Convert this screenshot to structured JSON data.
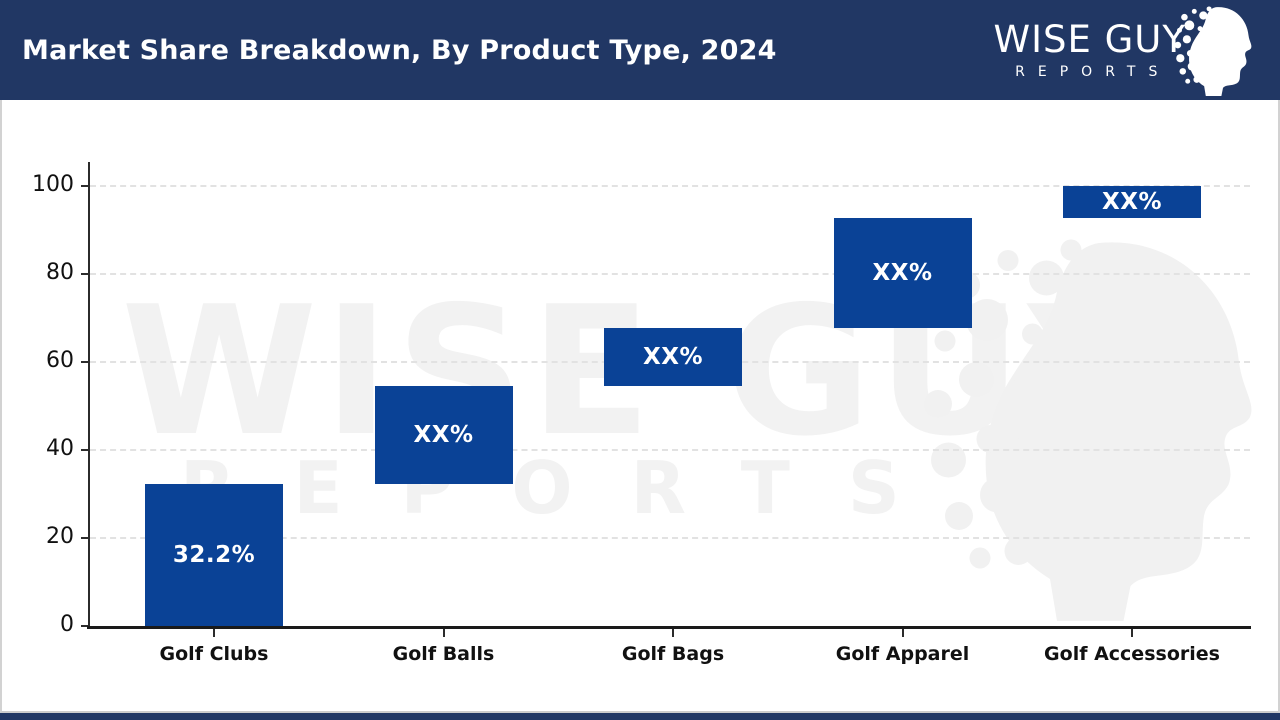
{
  "header": {
    "title": "Market Share Breakdown, By Product Type, 2024",
    "bg_color": "#213764",
    "logo": {
      "line1": "WISE GUY",
      "line2": "REPORTS"
    }
  },
  "watermark": {
    "line1": "WISE GUY",
    "line2": "REPORTS"
  },
  "footer": {
    "bg_color": "#213764"
  },
  "chart_data": {
    "type": "bar",
    "subtype": "waterfall",
    "title": "Market Share Breakdown, By Product Type, 2024",
    "categories": [
      "Golf Clubs",
      "Golf Balls",
      "Golf Bags",
      "Golf Apparel",
      "Golf Accessories"
    ],
    "series": [
      {
        "name": "Market share (%)",
        "starts": [
          0,
          32.2,
          54.5,
          67.7,
          92.7
        ],
        "ends": [
          32.2,
          54.5,
          67.7,
          92.7,
          100
        ]
      }
    ],
    "bar_labels": [
      "32.2%",
      "XX%",
      "XX%",
      "XX%",
      "XX%"
    ],
    "yticks": [
      0,
      20,
      40,
      60,
      80,
      100
    ],
    "ylim": [
      0,
      105
    ],
    "xlabel": "",
    "ylabel": "",
    "grid": "horizontal-dashed",
    "legend": false,
    "bar_color": "#0a4296",
    "label_color": "#ffffff"
  }
}
